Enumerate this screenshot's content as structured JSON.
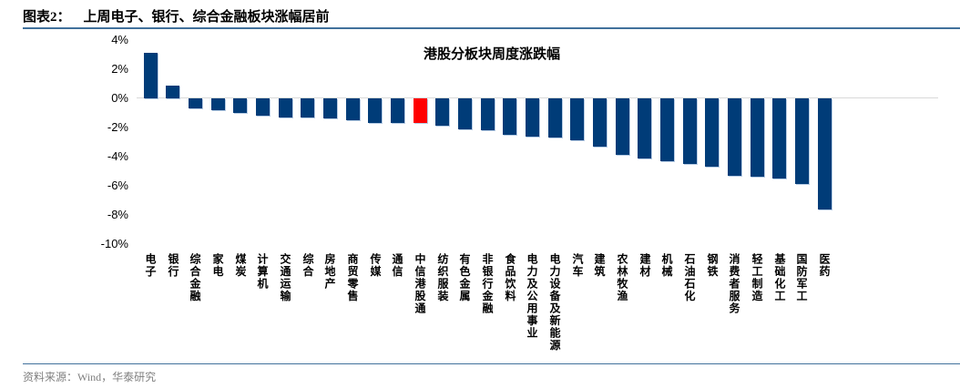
{
  "header": {
    "label": "图表2：",
    "title": "上周电子、银行、综合金融板块涨幅居前"
  },
  "chart_data": {
    "type": "bar",
    "title": "港股分板块周度涨跌幅",
    "categories": [
      "电子",
      "银行",
      "综合金融",
      "家电",
      "煤炭",
      "计算机",
      "交通运输",
      "综合",
      "房地产",
      "商贸零售",
      "传媒",
      "通信",
      "中信港股通",
      "纺织服装",
      "有色金属",
      "非银行金融",
      "食品饮料",
      "电力及公用事业",
      "电力设备及新能源",
      "汽车",
      "建筑",
      "农林牧渔",
      "建材",
      "机械",
      "石油石化",
      "钢铁",
      "消费者服务",
      "轻工制造",
      "基础化工",
      "国防军工",
      "医药"
    ],
    "values": [
      3.1,
      0.9,
      -0.7,
      -0.8,
      -1.0,
      -1.2,
      -1.3,
      -1.3,
      -1.4,
      -1.5,
      -1.7,
      -1.7,
      -1.7,
      -1.9,
      -2.1,
      -2.2,
      -2.5,
      -2.6,
      -2.7,
      -2.9,
      -3.3,
      -3.9,
      -4.1,
      -4.3,
      -4.5,
      -4.7,
      -5.3,
      -5.4,
      -5.5,
      -5.9,
      -7.6
    ],
    "unit": "%",
    "highlight_category": "中信港股通",
    "highlight_index": 12,
    "bar_color": "#003C78",
    "highlight_color": "#FF0000",
    "ylim": [
      -10,
      4
    ],
    "yticks": [
      4,
      2,
      0,
      -2,
      -4,
      -6,
      -8,
      -10
    ],
    "ytick_labels": [
      "4%",
      "2%",
      "0%",
      "-2%",
      "-4%",
      "-6%",
      "-8%",
      "-10%"
    ],
    "grid": "zero-baseline-only",
    "legend_position": "none"
  },
  "footer": {
    "source": "资料来源：Wind，华泰研究"
  },
  "colors": {
    "accent_line": "#41719C",
    "bar": "#003C78",
    "highlight": "#FF0000",
    "zero_line": "#D9D9D9",
    "source_text": "#808080"
  }
}
